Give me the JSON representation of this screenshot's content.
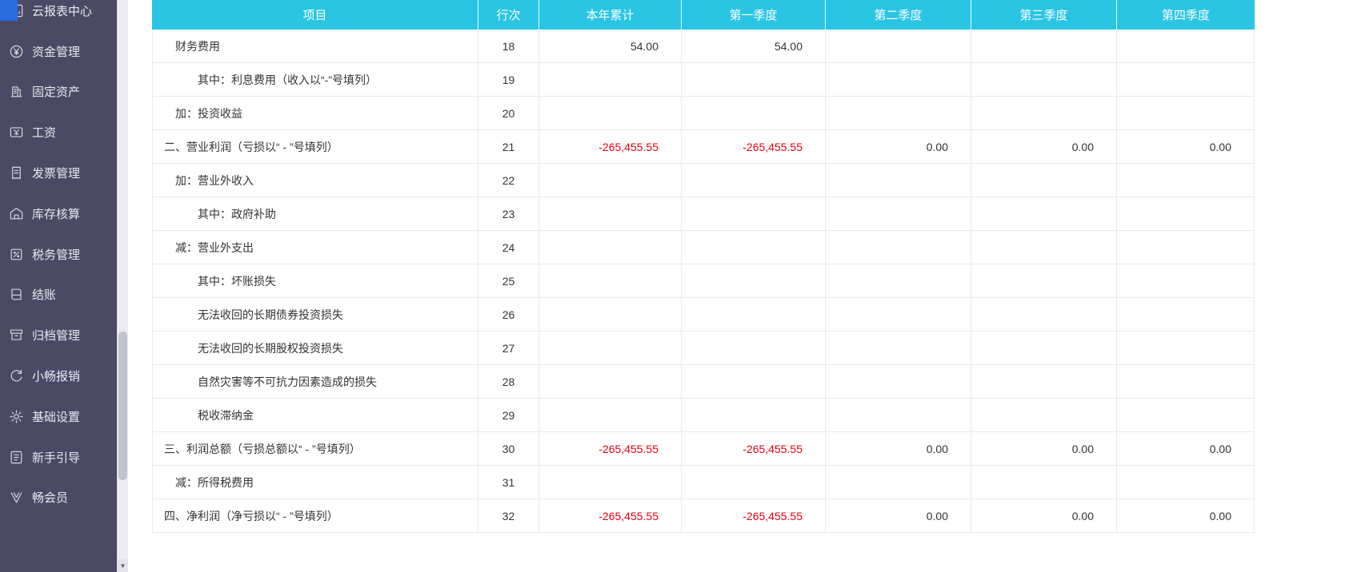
{
  "colors": {
    "header_bg": "#29c5e3",
    "negative": "#e60012",
    "sidebar_bg": "#4b4a64",
    "sidebar_text": "#e8e8f2",
    "accent_blue": "#2a6ce2",
    "grid_line": "#eaeaea",
    "text": "#333333"
  },
  "sidebar": {
    "scroll_down_glyph": "▼",
    "items": [
      {
        "label": "云报表中心",
        "icon": "chart-icon"
      },
      {
        "label": "资金管理",
        "icon": "money-icon"
      },
      {
        "label": "固定资产",
        "icon": "building-icon"
      },
      {
        "label": "工资",
        "icon": "salary-icon"
      },
      {
        "label": "发票管理",
        "icon": "invoice-icon"
      },
      {
        "label": "库存核算",
        "icon": "warehouse-icon"
      },
      {
        "label": "税务管理",
        "icon": "tax-icon"
      },
      {
        "label": "结账",
        "icon": "ledger-icon"
      },
      {
        "label": "归档管理",
        "icon": "archive-icon"
      },
      {
        "label": "小畅报销",
        "icon": "reimburse-icon"
      },
      {
        "label": "基础设置",
        "icon": "gear-icon"
      },
      {
        "label": "新手引导",
        "icon": "guide-icon"
      },
      {
        "label": "畅会员",
        "icon": "member-icon"
      }
    ]
  },
  "table": {
    "headers": [
      "项目",
      "行次",
      "本年累计",
      "第一季度",
      "第二季度",
      "第三季度",
      "第四季度"
    ],
    "rows": [
      {
        "item": "财务费用",
        "indent": 1,
        "line": "18",
        "ytd": "54.00",
        "q1": "54.00",
        "q2": "",
        "q3": "",
        "q4": ""
      },
      {
        "item": "其中：利息费用（收入以“-”号填列）",
        "indent": 2,
        "line": "19",
        "ytd": "",
        "q1": "",
        "q2": "",
        "q3": "",
        "q4": ""
      },
      {
        "item": "加：投资收益",
        "indent": 1,
        "line": "20",
        "ytd": "",
        "q1": "",
        "q2": "",
        "q3": "",
        "q4": ""
      },
      {
        "item": "二、营业利润（亏损以“ - ”号填列）",
        "indent": 0,
        "line": "21",
        "ytd": "-265,455.55",
        "q1": "-265,455.55",
        "q2": "0.00",
        "q3": "0.00",
        "q4": "0.00"
      },
      {
        "item": "加：营业外收入",
        "indent": 1,
        "line": "22",
        "ytd": "",
        "q1": "",
        "q2": "",
        "q3": "",
        "q4": ""
      },
      {
        "item": "其中：政府补助",
        "indent": 2,
        "line": "23",
        "ytd": "",
        "q1": "",
        "q2": "",
        "q3": "",
        "q4": ""
      },
      {
        "item": "减：营业外支出",
        "indent": 1,
        "line": "24",
        "ytd": "",
        "q1": "",
        "q2": "",
        "q3": "",
        "q4": ""
      },
      {
        "item": "其中：坏账损失",
        "indent": 2,
        "line": "25",
        "ytd": "",
        "q1": "",
        "q2": "",
        "q3": "",
        "q4": ""
      },
      {
        "item": "无法收回的长期债券投资损失",
        "indent": 2,
        "line": "26",
        "ytd": "",
        "q1": "",
        "q2": "",
        "q3": "",
        "q4": ""
      },
      {
        "item": "无法收回的长期股权投资损失",
        "indent": 2,
        "line": "27",
        "ytd": "",
        "q1": "",
        "q2": "",
        "q3": "",
        "q4": ""
      },
      {
        "item": "自然灾害等不可抗力因素造成的损失",
        "indent": 2,
        "line": "28",
        "ytd": "",
        "q1": "",
        "q2": "",
        "q3": "",
        "q4": ""
      },
      {
        "item": "税收滞纳金",
        "indent": 2,
        "line": "29",
        "ytd": "",
        "q1": "",
        "q2": "",
        "q3": "",
        "q4": ""
      },
      {
        "item": "三、利润总额（亏损总额以“ - ”号填列）",
        "indent": 0,
        "line": "30",
        "ytd": "-265,455.55",
        "q1": "-265,455.55",
        "q2": "0.00",
        "q3": "0.00",
        "q4": "0.00"
      },
      {
        "item": "减：所得税费用",
        "indent": 1,
        "line": "31",
        "ytd": "",
        "q1": "",
        "q2": "",
        "q3": "",
        "q4": ""
      },
      {
        "item": "四、净利润（净亏损以“ - ”号填列）",
        "indent": 0,
        "line": "32",
        "ytd": "-265,455.55",
        "q1": "-265,455.55",
        "q2": "0.00",
        "q3": "0.00",
        "q4": "0.00"
      }
    ]
  }
}
